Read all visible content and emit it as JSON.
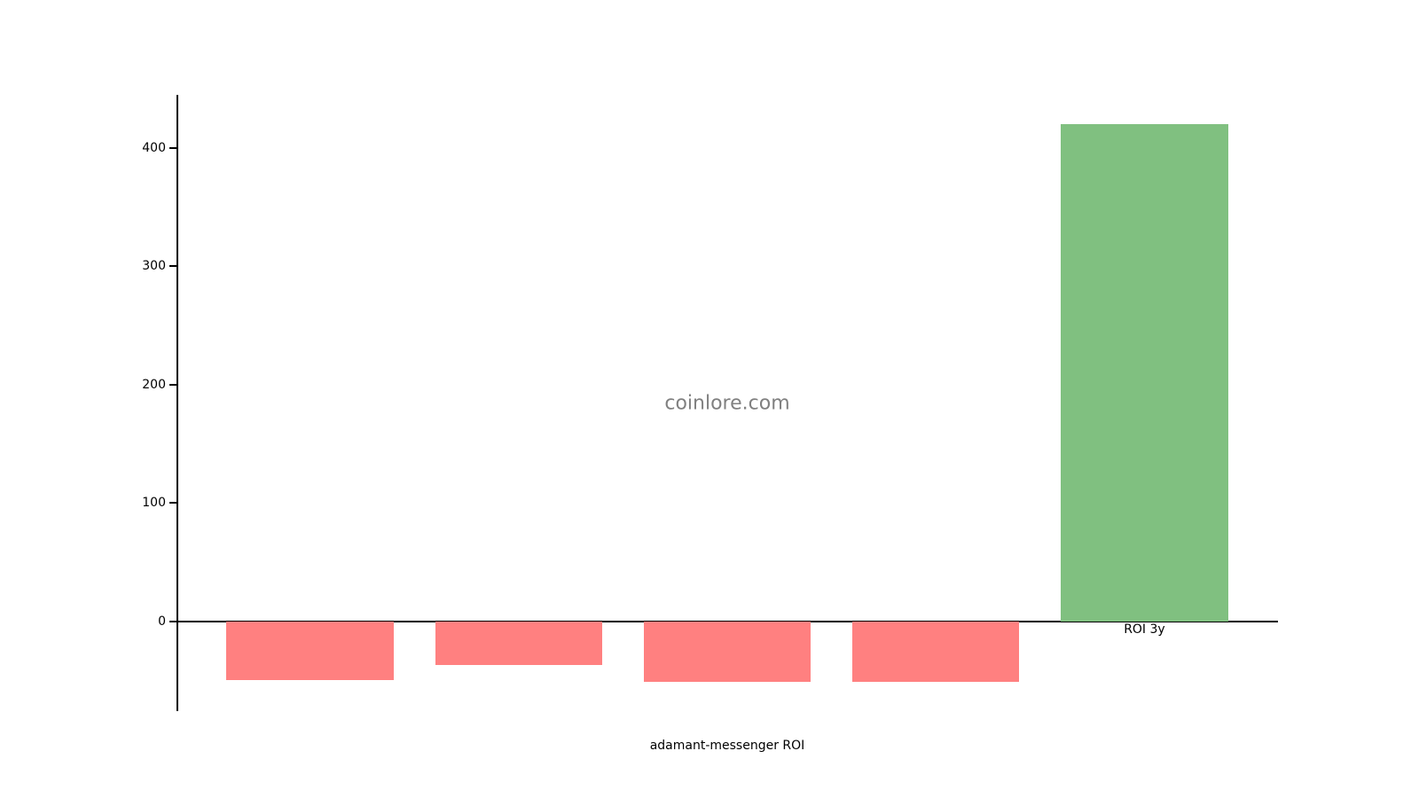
{
  "chart_data": {
    "type": "bar",
    "title": "adamant-messenger ROI",
    "watermark": "coinlore.com",
    "categories": [
      "",
      "",
      "",
      "",
      "ROI 3y"
    ],
    "values": [
      -50,
      -37,
      -51,
      -51,
      420
    ],
    "bar_colors": [
      "#ff8080",
      "#ff8080",
      "#ff8080",
      "#ff8080",
      "#80c080"
    ],
    "negative_color": "#ff8080",
    "positive_color": "#80c080",
    "axis_color": "#000000",
    "watermark_color": "#808080",
    "yticks": [
      0,
      100,
      200,
      300,
      400
    ],
    "ylim": [
      -76,
      445
    ],
    "xlabel": "",
    "ylabel": "",
    "grid": false,
    "legend": "none"
  }
}
